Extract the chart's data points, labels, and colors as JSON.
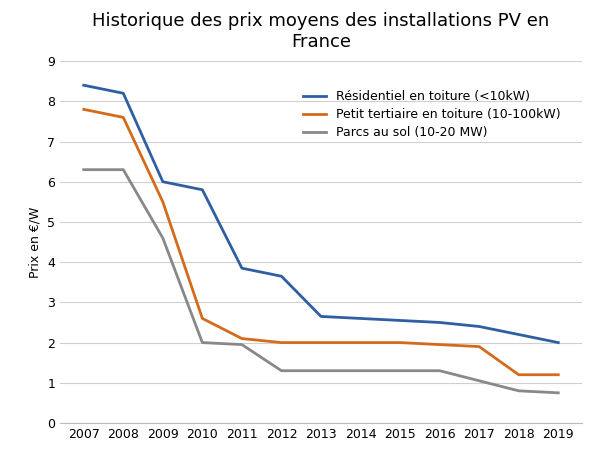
{
  "title": "Historique des prix moyens des installations PV en\nFrance",
  "xlabel": "",
  "ylabel": "Prix en €/W",
  "years": [
    2007,
    2008,
    2009,
    2010,
    2011,
    2012,
    2013,
    2014,
    2015,
    2016,
    2017,
    2018,
    2019
  ],
  "series": [
    {
      "label": "Résidentiel en toiture (<10kW)",
      "color": "#2e5fa3",
      "values": [
        8.4,
        8.2,
        6.0,
        5.8,
        3.85,
        3.65,
        2.65,
        2.6,
        2.55,
        2.5,
        2.4,
        2.2,
        2.0
      ]
    },
    {
      "label": "Petit tertiaire en toiture (10-100kW)",
      "color": "#d46b1a",
      "values": [
        7.8,
        7.6,
        5.5,
        2.6,
        2.1,
        2.0,
        2.0,
        2.0,
        2.0,
        1.95,
        1.9,
        1.2,
        1.2
      ]
    },
    {
      "label": "Parcs au sol (10-20 MW)",
      "color": "#888888",
      "values": [
        6.3,
        6.3,
        4.6,
        2.0,
        1.95,
        1.3,
        1.3,
        1.3,
        1.3,
        1.3,
        1.05,
        0.8,
        0.75
      ]
    }
  ],
  "ylim": [
    0,
    9
  ],
  "yticks": [
    0,
    1,
    2,
    3,
    4,
    5,
    6,
    7,
    8,
    9
  ],
  "grid_color": "#d0d0d0",
  "background_color": "#ffffff",
  "title_fontsize": 13,
  "axis_label_fontsize": 9,
  "tick_fontsize": 9,
  "legend_fontsize": 9,
  "line_width": 2.0
}
